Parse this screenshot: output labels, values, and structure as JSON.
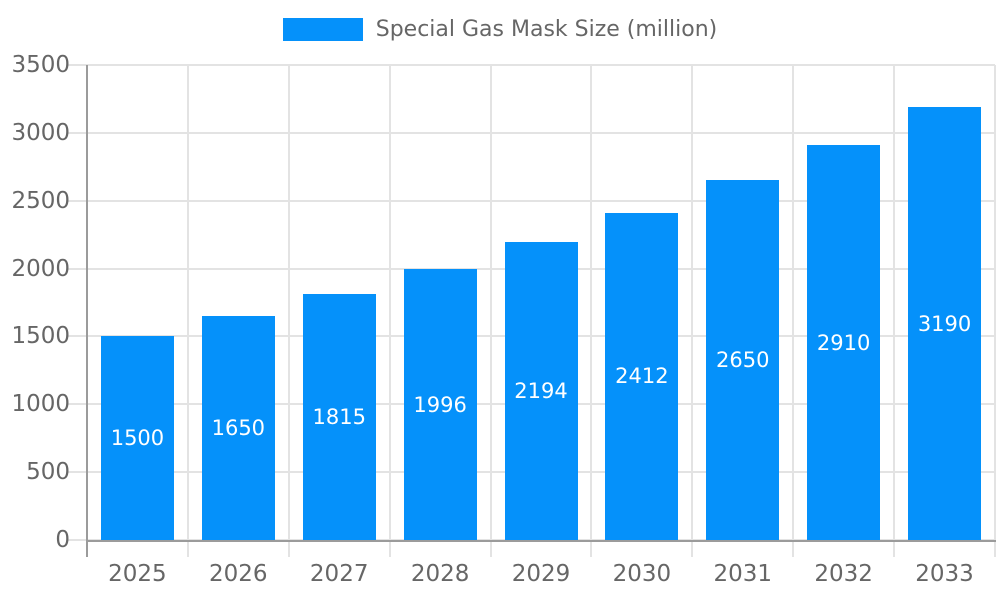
{
  "legend": {
    "label": "Special Gas Mask Size (million)"
  },
  "chart_data": {
    "type": "bar",
    "title": "",
    "xlabel": "",
    "ylabel": "",
    "categories": [
      "2025",
      "2026",
      "2027",
      "2028",
      "2029",
      "2030",
      "2031",
      "2032",
      "2033"
    ],
    "series": [
      {
        "name": "Special Gas Mask Size (million)",
        "values": [
          1500,
          1650,
          1815,
          1996,
          2194,
          2412,
          2650,
          2910,
          3190
        ]
      }
    ],
    "value_labels_shown": true,
    "ylim": [
      0,
      3500
    ],
    "ytick_step": 500,
    "yticks": [
      "0",
      "500",
      "1000",
      "1500",
      "2000",
      "2500",
      "3000",
      "3500"
    ],
    "grid": true,
    "legend_position": "top-center"
  },
  "colors": {
    "bar": "#0591FA",
    "grid": "#E3E3E3",
    "axis": "#9B9B9B",
    "tick_text": "#666666",
    "legend_text": "#666666",
    "value_label_text": "#FFFFFF",
    "background": "#FFFFFF"
  }
}
